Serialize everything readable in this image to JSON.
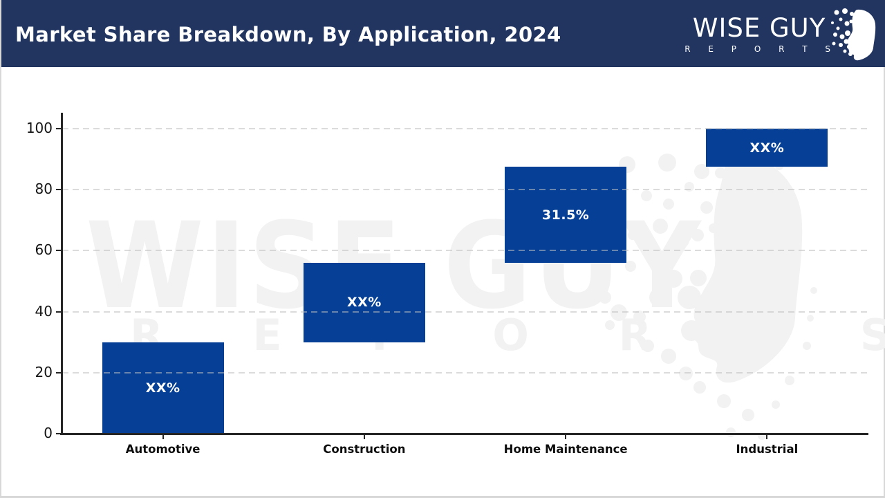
{
  "header": {
    "title": "Market Share Breakdown, By Application, 2024",
    "logo": {
      "name": "WISE GUY",
      "sub": "R E P O R T S"
    }
  },
  "watermark": {
    "line1": "WISE GUY",
    "line2": "R E P O R T S"
  },
  "colors": {
    "header_bg": "#223560",
    "bar_blue": "#054096",
    "grid_gray": "#e2e2e2",
    "axis_black": "#262626",
    "watermark_gray": "#f2f2f2",
    "label_white": "#ffffff"
  },
  "chart_data": {
    "type": "bar",
    "variant": "floating-waterfall",
    "title": "Market Share Breakdown, By Application, 2024",
    "categories": [
      "Automotive",
      "Construction",
      "Home Maintenance",
      "Industrial"
    ],
    "series": [
      {
        "category": "Automotive",
        "start": 0,
        "end": 30,
        "label": "XX%"
      },
      {
        "category": "Construction",
        "start": 30,
        "end": 56,
        "label": "XX%"
      },
      {
        "category": "Home Maintenance",
        "start": 56,
        "end": 87.5,
        "label": "31.5%"
      },
      {
        "category": "Industrial",
        "start": 87.5,
        "end": 100,
        "label": "XX%"
      }
    ],
    "xlabel": "",
    "ylabel": "",
    "ylim": [
      0,
      100
    ],
    "yticks": [
      0,
      20,
      40,
      60,
      80,
      100
    ],
    "grid": true,
    "grid_style": "dashed-horizontal-above-bars",
    "legend": false,
    "bar_color": "#054096"
  }
}
